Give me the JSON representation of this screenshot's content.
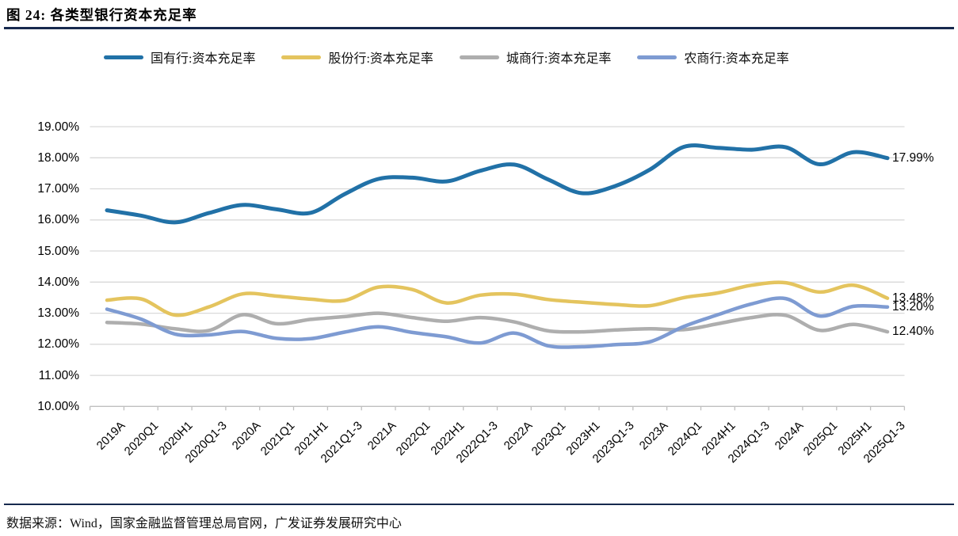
{
  "figure": {
    "title": "图 24: 各类型银行资本充足率",
    "source": "数据来源：Wind，国家金融监督管理总局官网，广发证券发展研究中心"
  },
  "colors": {
    "rule": "#16294E",
    "grid": "#D9D9D9",
    "axis": "#BFBFBF",
    "text": "#000000"
  },
  "chart_data": {
    "type": "line",
    "title": "图 24: 各类型银行资本充足率",
    "xlabel": "",
    "ylabel": "",
    "ylim": [
      10,
      19
    ],
    "ytick_step": 1,
    "yticks": [
      "19.00%",
      "18.00%",
      "17.00%",
      "16.00%",
      "15.00%",
      "14.00%",
      "13.00%",
      "12.00%",
      "11.00%",
      "10.00%"
    ],
    "grid": "horizontal",
    "legend_position": "top",
    "categories": [
      "2019A",
      "2020Q1",
      "2020H1",
      "2020Q1-3",
      "2020A",
      "2021Q1",
      "2021H1",
      "2021Q1-3",
      "2021A",
      "2022Q1",
      "2022H1",
      "2022Q1-3",
      "2022A",
      "2023Q1",
      "2023H1",
      "2023Q1-3",
      "2023A",
      "2024Q1",
      "2024H1",
      "2024Q1-3",
      "2024A",
      "2025Q1",
      "2025H1",
      "2025Q1-3"
    ],
    "series": [
      {
        "name": "国有行:资本充足率",
        "color": "#2171A7",
        "stroke_width": 5,
        "end_label": "17.99%",
        "values": [
          16.31,
          16.14,
          15.92,
          16.22,
          16.48,
          16.34,
          16.23,
          16.83,
          17.32,
          17.36,
          17.24,
          17.58,
          17.78,
          17.3,
          16.86,
          17.1,
          17.62,
          18.35,
          18.32,
          18.26,
          18.34,
          17.79,
          18.18,
          17.99
        ]
      },
      {
        "name": "股份行:资本充足率",
        "color": "#E4C45E",
        "stroke_width": 4.5,
        "end_label": "13.48%",
        "values": [
          13.42,
          13.46,
          12.94,
          13.2,
          13.62,
          13.55,
          13.45,
          13.41,
          13.84,
          13.76,
          13.33,
          13.58,
          13.61,
          13.44,
          13.35,
          13.28,
          13.24,
          13.5,
          13.65,
          13.9,
          13.98,
          13.68,
          13.9,
          13.48
        ]
      },
      {
        "name": "城商行:资本充足率",
        "color": "#AEAEAE",
        "stroke_width": 4.5,
        "end_label": "12.40%",
        "values": [
          12.7,
          12.65,
          12.5,
          12.44,
          12.95,
          12.66,
          12.8,
          12.89,
          13.0,
          12.86,
          12.74,
          12.86,
          12.72,
          12.43,
          12.4,
          12.46,
          12.5,
          12.47,
          12.66,
          12.86,
          12.93,
          12.45,
          12.64,
          12.4
        ]
      },
      {
        "name": "农商行:资本充足率",
        "color": "#7E9BD2",
        "stroke_width": 4.5,
        "end_label": "13.20%",
        "values": [
          13.13,
          12.81,
          12.33,
          12.3,
          12.41,
          12.19,
          12.18,
          12.39,
          12.56,
          12.38,
          12.24,
          12.04,
          12.36,
          11.95,
          11.92,
          11.99,
          12.08,
          12.57,
          12.95,
          13.3,
          13.47,
          12.91,
          13.22,
          13.2
        ]
      }
    ]
  }
}
